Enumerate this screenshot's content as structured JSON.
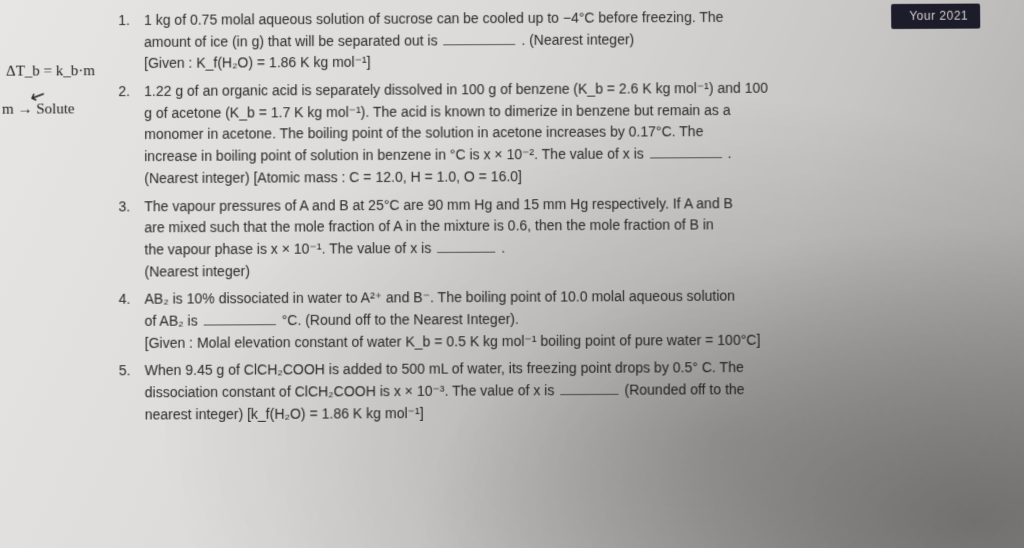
{
  "badge": "Your 2021",
  "handwriting": {
    "eq": "ΔT_b = k_b·m",
    "arrow": "↙",
    "solute": "m → Solute"
  },
  "q1": {
    "num": "1.",
    "line1a": "1 kg of 0.75 molal aqueous solution of sucrose can be cooled up to −4°C before freezing. The",
    "line2a": "amount of ice (in g) that will be separated out is",
    "line2b": ". (Nearest integer)",
    "line3": "[Given : K_f(H₂O) = 1.86 K kg mol⁻¹]"
  },
  "q2": {
    "num": "2.",
    "line1": "1.22 g of an organic acid is separately dissolved in 100 g of benzene (K_b = 2.6 K kg mol⁻¹) and 100",
    "line2": "g of acetone (K_b = 1.7 K kg mol⁻¹). The acid is known to dimerize in benzene but remain as a",
    "line3": "monomer in acetone. The boiling point of the solution in acetone increases by 0.17°C. The",
    "line4a": "increase in boiling point of solution in benzene in °C is x × 10⁻². The value of x is",
    "line4b": ".",
    "line5": "(Nearest integer) [Atomic mass : C = 12.0, H = 1.0, O = 16.0]"
  },
  "q3": {
    "num": "3.",
    "line1": "The vapour pressures of A and B at 25°C are 90 mm Hg and 15 mm Hg respectively. If A and B",
    "line2": "are mixed such that the mole fraction of A in the mixture is 0.6, then the mole fraction of B in",
    "line3a": "the vapour phase is x × 10⁻¹. The value of x is ",
    "line3b": ".",
    "line4": "(Nearest integer)"
  },
  "q4": {
    "num": "4.",
    "line1": "AB₂ is 10% dissociated in water to A²⁺ and B⁻. The boiling point of 10.0 molal aqueous solution",
    "line2a": "of AB₂ is ",
    "line2b": " °C. (Round off to the Nearest Integer).",
    "line3": "[Given : Molal elevation constant of water K_b = 0.5 K kg mol⁻¹ boiling point of pure water = 100°C]"
  },
  "q5": {
    "num": "5.",
    "line1": "When 9.45 g of ClCH₂COOH is added to 500 mL of water, its freezing point drops by 0.5° C. The",
    "line2a": "dissociation constant of ClCH₂COOH is x × 10⁻³. The value of x is ",
    "line2b": " (Rounded off to the",
    "line3": "nearest integer) [k_f(H₂O) = 1.86 K kg mol⁻¹]"
  }
}
